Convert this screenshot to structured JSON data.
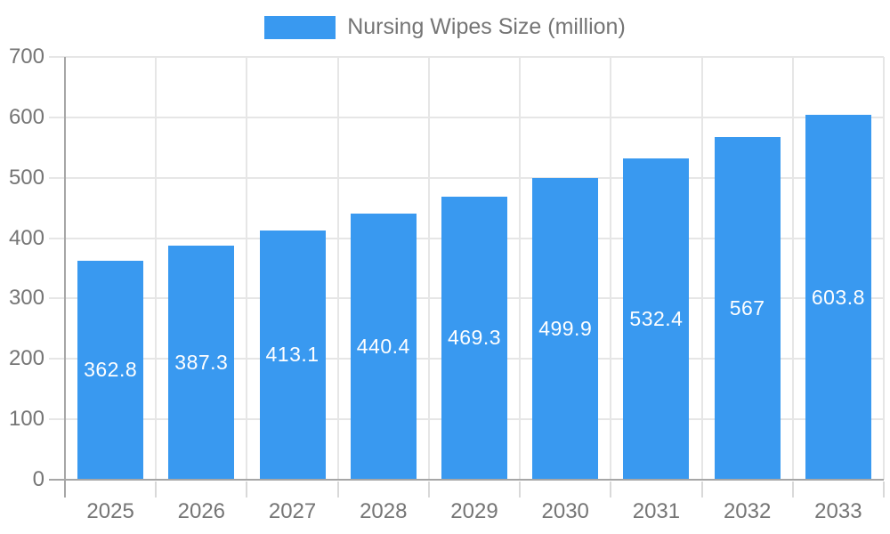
{
  "legend": {
    "label": "Nursing Wipes Size (million)"
  },
  "chart_data": {
    "type": "bar",
    "title": "Nursing Wipes Size (million)",
    "categories": [
      "2025",
      "2026",
      "2027",
      "2028",
      "2029",
      "2030",
      "2031",
      "2032",
      "2033"
    ],
    "values": [
      362.8,
      387.3,
      413.1,
      440.4,
      469.3,
      499.9,
      532.4,
      567,
      603.8
    ],
    "value_labels": [
      "362.8",
      "387.3",
      "413.1",
      "440.4",
      "469.3",
      "499.9",
      "532.4",
      "567",
      "603.8"
    ],
    "xlabel": "",
    "ylabel": "",
    "ylim": [
      0,
      700
    ],
    "yticks": [
      0,
      100,
      200,
      300,
      400,
      500,
      600,
      700
    ],
    "grid": true,
    "legend_position": "top-center",
    "value_label_position": "inside-center",
    "colors": {
      "bar": "#3999F0",
      "grid": "#e6e6e6",
      "axis": "#a6a6a6",
      "tick": "#d9d9d9",
      "axis_text": "#757575",
      "value_label": "#ffffff",
      "background": "#ffffff"
    }
  }
}
